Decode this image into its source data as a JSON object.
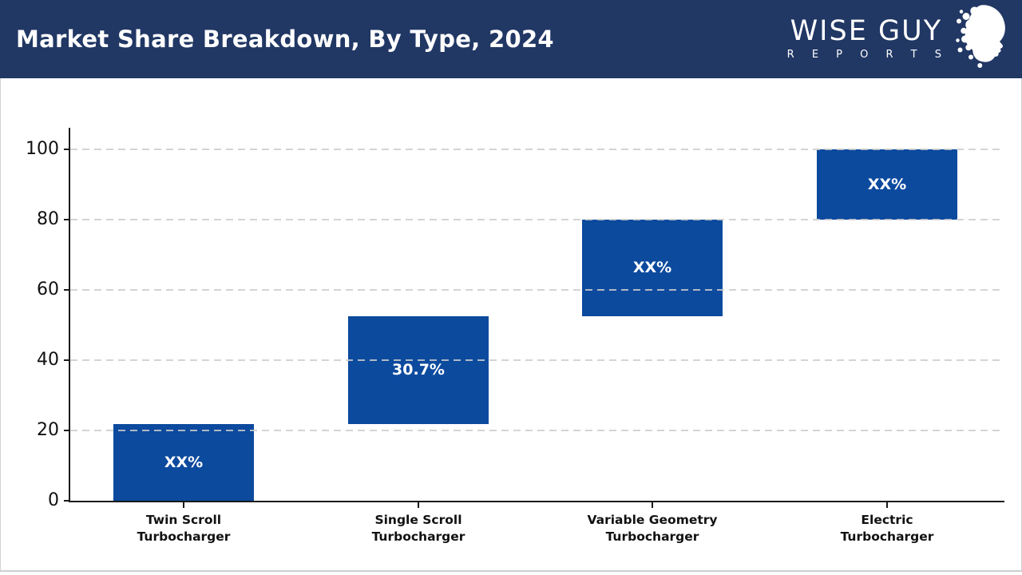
{
  "header": {
    "title": "Market Share Breakdown, By Type, 2024",
    "logo": {
      "line1": "WISE GUY",
      "line2": "R E P O R T S"
    }
  },
  "watermark": {
    "line1": "WISE GUY",
    "line2": "R E P O R T S"
  },
  "colors": {
    "header_bg": "#213764",
    "bar_blue": "#0c4a9e",
    "grid_gray": "#cdcdcd",
    "axis_black": "#1a1a1a",
    "watermark_gray": "#f1f2f5",
    "bar_label_white": "#ffffff"
  },
  "chart_data": {
    "type": "bar",
    "subtype": "floating-waterfall",
    "title": "Market Share Breakdown, By Type, 2024",
    "categories": [
      [
        "Twin Scroll",
        "Turbocharger"
      ],
      [
        "Single Scroll",
        "Turbocharger"
      ],
      [
        "Variable Geometry",
        "Turbocharger"
      ],
      [
        "Electric",
        "Turbocharger"
      ]
    ],
    "segments": [
      {
        "start": 0,
        "end": 21.9,
        "label": "XX%"
      },
      {
        "start": 21.9,
        "end": 52.6,
        "label": "30.7%"
      },
      {
        "start": 52.6,
        "end": 79.9,
        "label": "XX%"
      },
      {
        "start": 79.9,
        "end": 100,
        "label": "XX%"
      }
    ],
    "values": [
      21.9,
      30.7,
      27.3,
      20.1
    ],
    "yticks": [
      0,
      20,
      40,
      60,
      80,
      100
    ],
    "ylim": [
      0,
      100
    ],
    "xlabel": "",
    "ylabel": "",
    "grid": "dashed-horizontal",
    "legend": "none"
  }
}
